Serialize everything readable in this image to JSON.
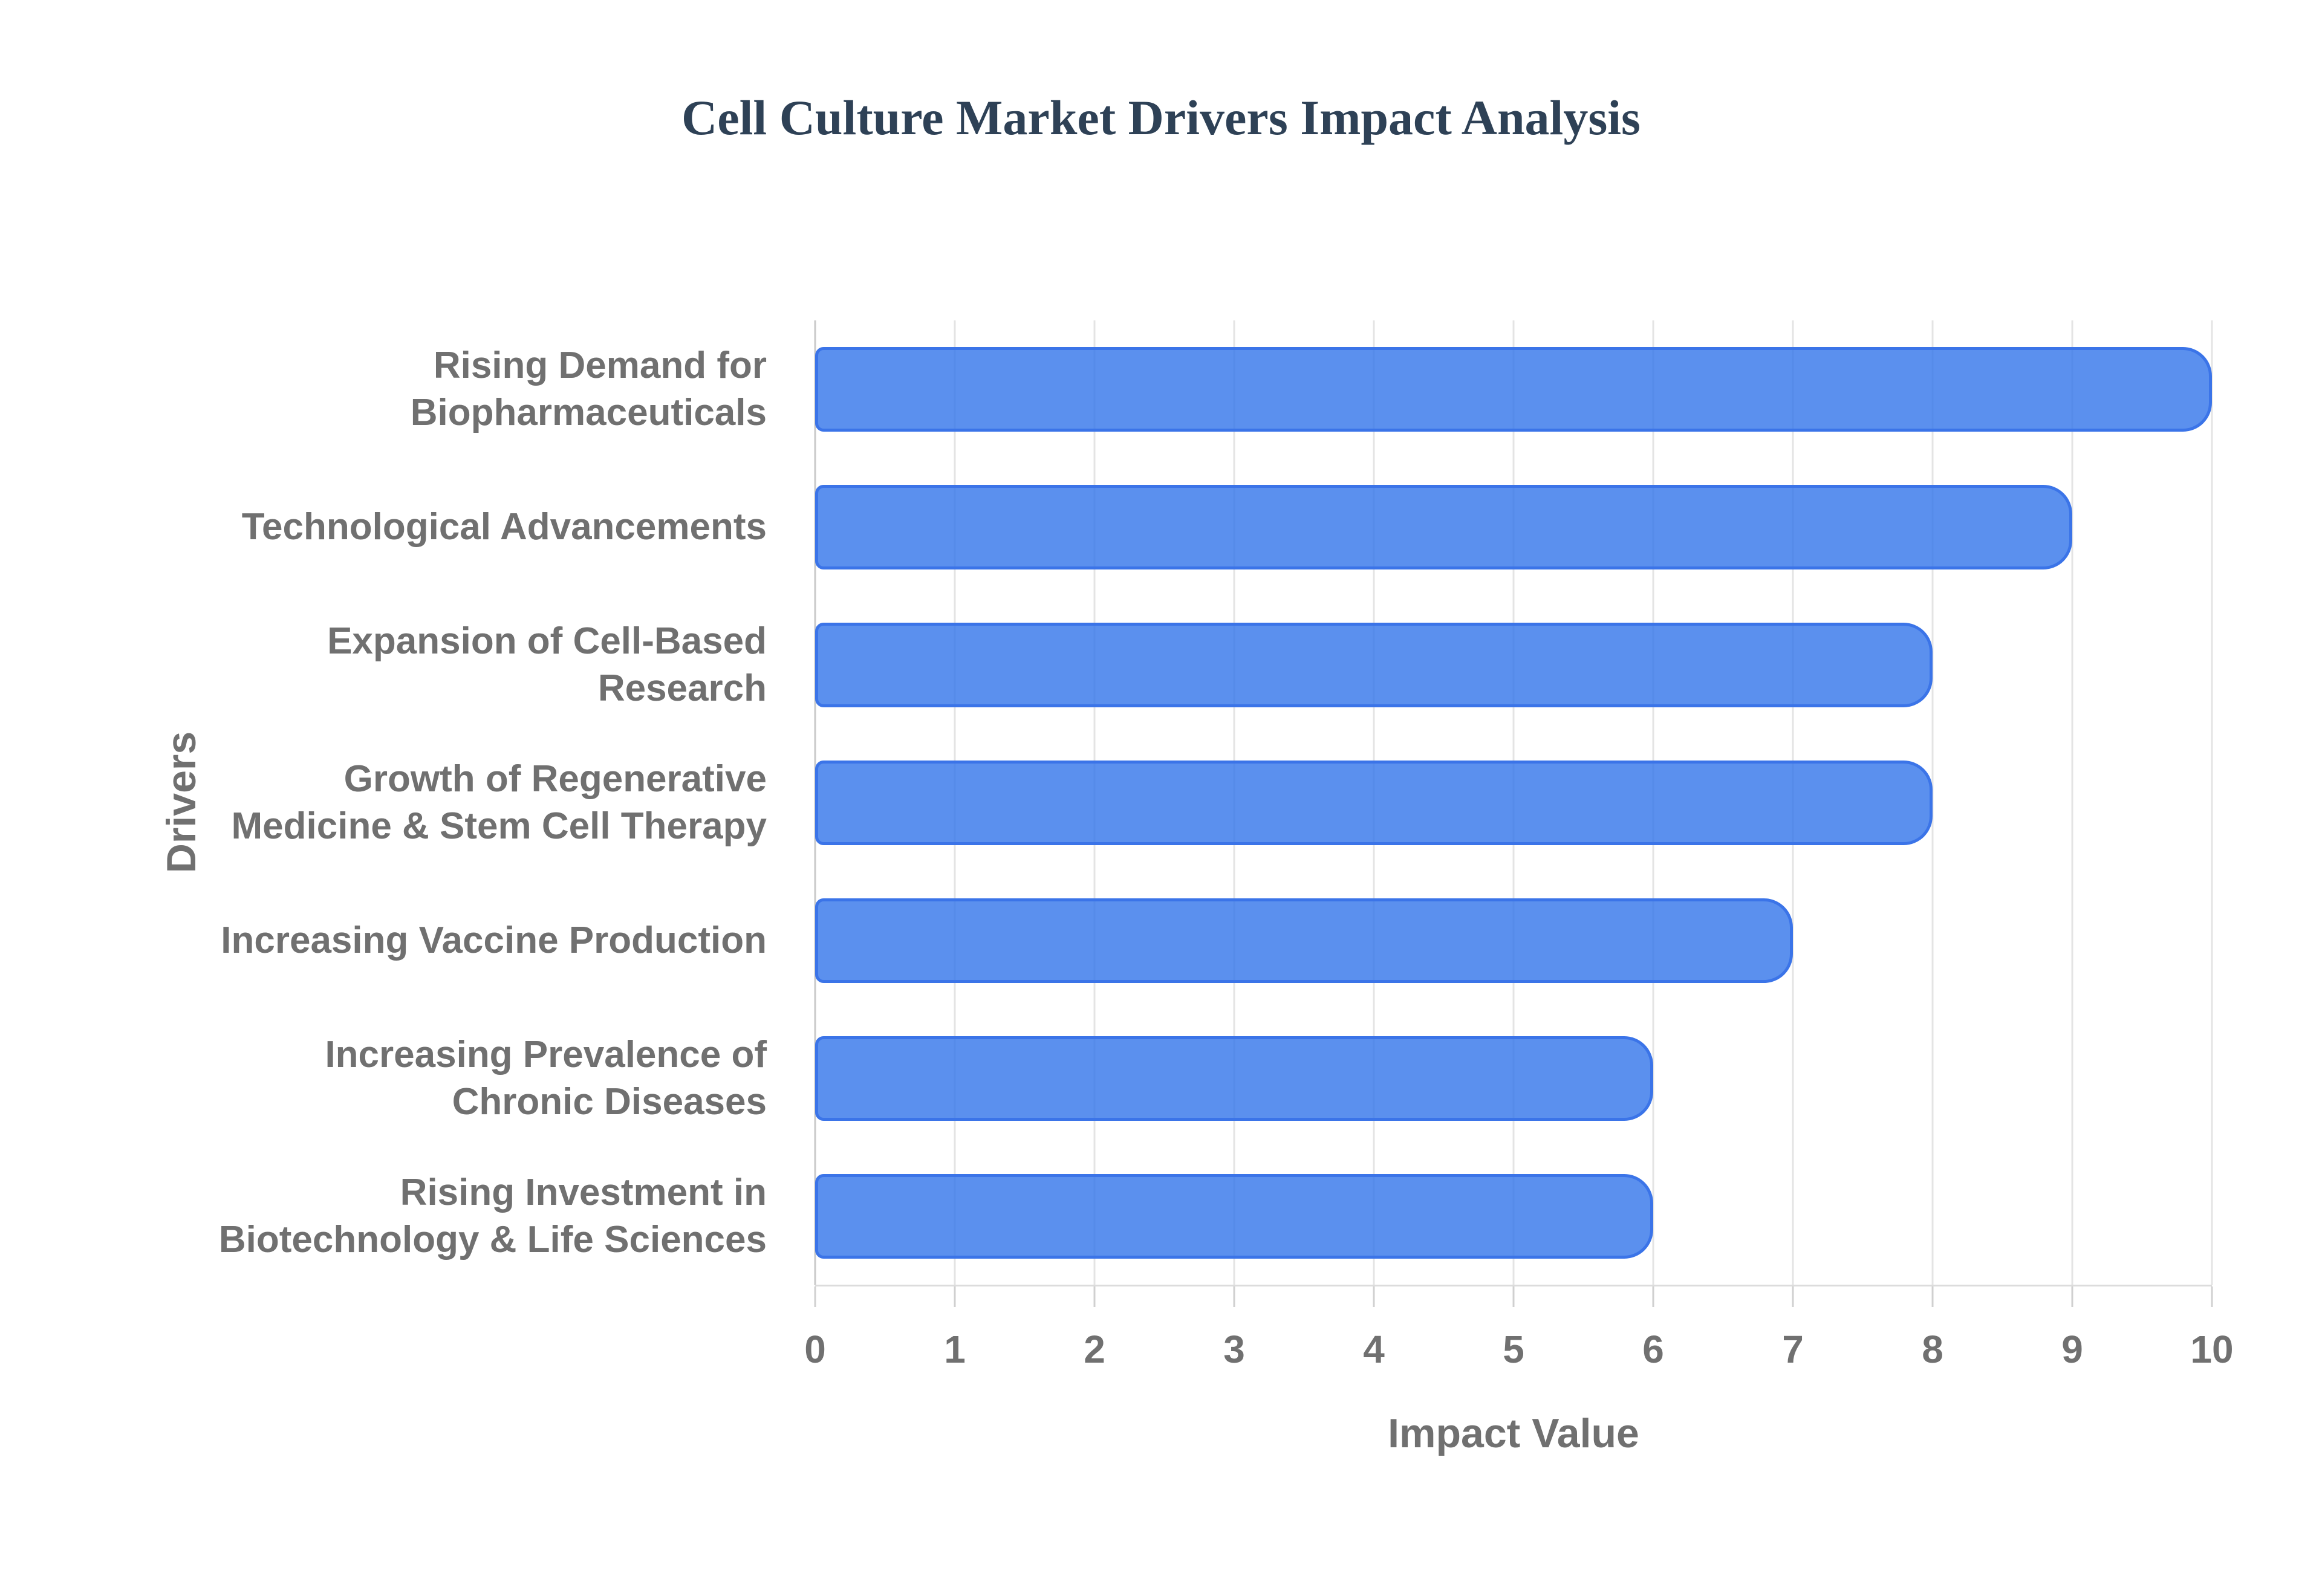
{
  "title": "Cell Culture Market Drivers Impact Analysis",
  "chart_data": {
    "type": "bar",
    "orientation": "horizontal",
    "title": "Cell Culture Market Drivers Impact Analysis",
    "xlabel": "Impact Value",
    "ylabel": "Drivers",
    "categories": [
      "Rising Demand for Biopharmaceuticals",
      "Technological Advancements",
      "Expansion of Cell-Based Research",
      "Growth of Regenerative Medicine & Stem Cell Therapy",
      "Increasing Vaccine Production",
      "Increasing Prevalence of Chronic Diseases",
      "Rising Investment in Biotechnology & Life Sciences"
    ],
    "categories_wrapped": [
      [
        "Rising Demand for",
        "Biopharmaceuticals"
      ],
      [
        "Technological Advancements"
      ],
      [
        "Expansion of Cell-Based",
        "Research"
      ],
      [
        "Growth of Regenerative",
        "Medicine & Stem Cell Therapy"
      ],
      [
        "Increasing Vaccine Production"
      ],
      [
        "Increasing Prevalence of",
        "Chronic Diseases"
      ],
      [
        "Rising Investment in",
        "Biotechnology & Life Sciences"
      ]
    ],
    "values": [
      10,
      9,
      8,
      8,
      7,
      6,
      6
    ],
    "xlim": [
      0,
      10
    ],
    "xticks": [
      0,
      1,
      2,
      3,
      4,
      5,
      6,
      7,
      8,
      9,
      10
    ],
    "grid": "vertical",
    "legend": "none",
    "colors": {
      "bar_fill": "rgba(50,116,234,0.8)",
      "bar_border": "#3b74e8",
      "title_text": "#2e4156",
      "label_text": "#707070",
      "gridline": "#e4e4e4",
      "axis_line": "#c9c9c9"
    }
  }
}
